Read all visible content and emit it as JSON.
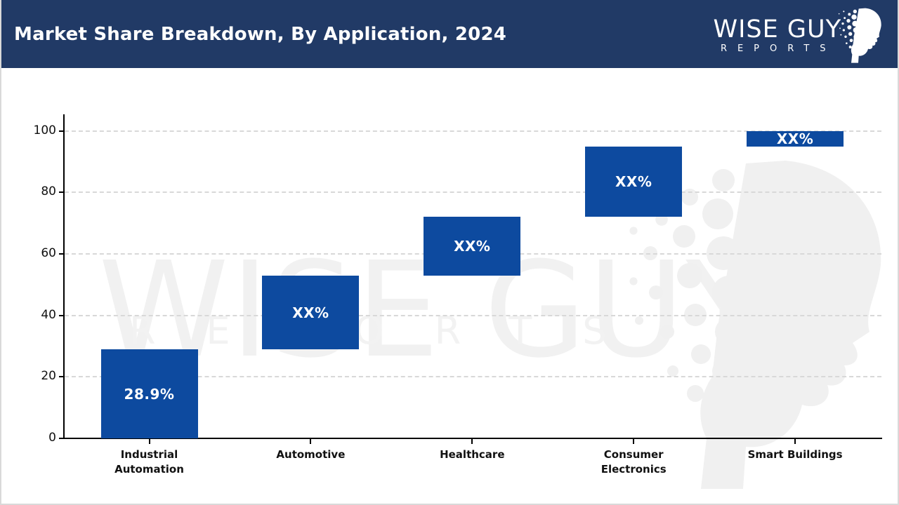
{
  "header": {
    "title": "Market Share Breakdown, By Application, 2024",
    "logo": {
      "name": "WISE GUY",
      "sub": "REPORTS"
    },
    "bg_color": "#213a66"
  },
  "watermark": {
    "line1": "WISE GUY",
    "line2": "REPORTS"
  },
  "chart_data": {
    "type": "bar",
    "subtype": "waterfall",
    "title": "Market Share Breakdown, By Application, 2024",
    "categories": [
      "Industrial Automation",
      "Automotive",
      "Healthcare",
      "Consumer Electronics",
      "Smart Buildings"
    ],
    "bars": [
      {
        "category": "Industrial Automation",
        "start": 0,
        "end": 28.9,
        "label": "28.9%"
      },
      {
        "category": "Automotive",
        "start": 28.9,
        "end": 52.9,
        "label": "XX%"
      },
      {
        "category": "Healthcare",
        "start": 52.9,
        "end": 72.1,
        "label": "XX%"
      },
      {
        "category": "Consumer Electronics",
        "start": 72.1,
        "end": 94.8,
        "label": "XX%"
      },
      {
        "category": "Smart Buildings",
        "start": 94.8,
        "end": 100,
        "label": "XX%"
      }
    ],
    "ylim": [
      0,
      105
    ],
    "yticks": [
      0,
      20,
      40,
      60,
      80,
      100
    ],
    "xlabel": "",
    "ylabel": "",
    "legend": "none",
    "grid": "horizontal-dashed",
    "bar_color": "#0d4a9f",
    "bar_label_color": "#ffffff",
    "gridline_color": "#d8d8d8",
    "axis_color": "#000000"
  }
}
